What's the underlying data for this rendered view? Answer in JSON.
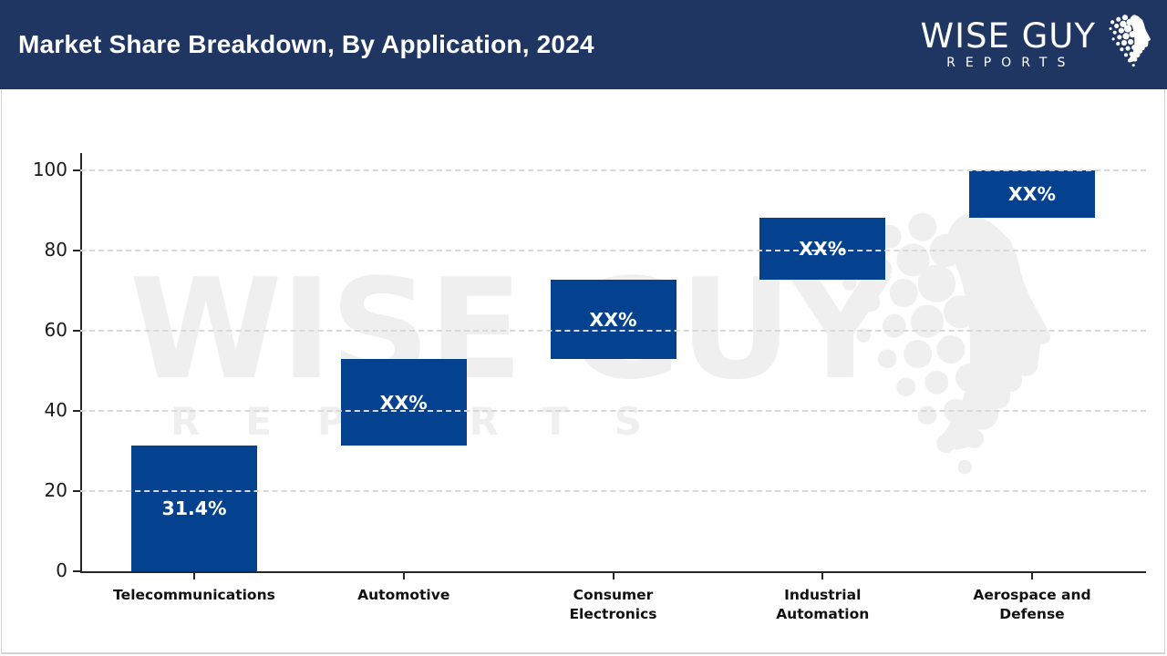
{
  "header": {
    "title": "Market Share Breakdown, By Application, 2024",
    "logo": {
      "line1": "WISE GUY",
      "line2": "REPORTS"
    }
  },
  "watermark": {
    "line1": "WISE GUY",
    "line2": "REPORTS"
  },
  "colors": {
    "header_bg": "#1F3562",
    "bar": "#04418F",
    "axis": "#262626",
    "grid": "#D9D9D9",
    "category_label": "#111111",
    "bar_label": "#FFFFFF",
    "watermark": "#EFEFF0",
    "panel_border": "#D4D4D4"
  },
  "chart_data": {
    "type": "bar",
    "subtype": "waterfall",
    "title": "Market Share Breakdown, By Application, 2024",
    "categories": [
      "Telecommunications",
      "Automotive",
      "Consumer Electronics",
      "Industrial Automation",
      "Aerospace and Defense"
    ],
    "category_label_lines": [
      [
        "Telecommunications"
      ],
      [
        "Automotive"
      ],
      [
        "Consumer",
        "Electronics"
      ],
      [
        "Industrial",
        "Automation"
      ],
      [
        "Aerospace and",
        "Defense"
      ]
    ],
    "series": [
      {
        "name": "Market Share",
        "segments": [
          {
            "category": "Telecommunications",
            "start": 0,
            "end": 31.4,
            "label": "31.4%"
          },
          {
            "category": "Automotive",
            "start": 31.4,
            "end": 52.9,
            "label": "XX%"
          },
          {
            "category": "Consumer Electronics",
            "start": 52.9,
            "end": 72.7,
            "label": "XX%"
          },
          {
            "category": "Industrial Automation",
            "start": 72.7,
            "end": 88.2,
            "label": "XX%"
          },
          {
            "category": "Aerospace and Defense",
            "start": 88.2,
            "end": 100,
            "label": "XX%"
          }
        ]
      }
    ],
    "xlabel": "",
    "ylabel": "",
    "ylim": [
      0,
      100
    ],
    "yticks": [
      0,
      20,
      40,
      60,
      80,
      100
    ],
    "grid": {
      "horizontal": true,
      "style": "dashed"
    },
    "legend": null,
    "bar_color": "#04418F"
  }
}
